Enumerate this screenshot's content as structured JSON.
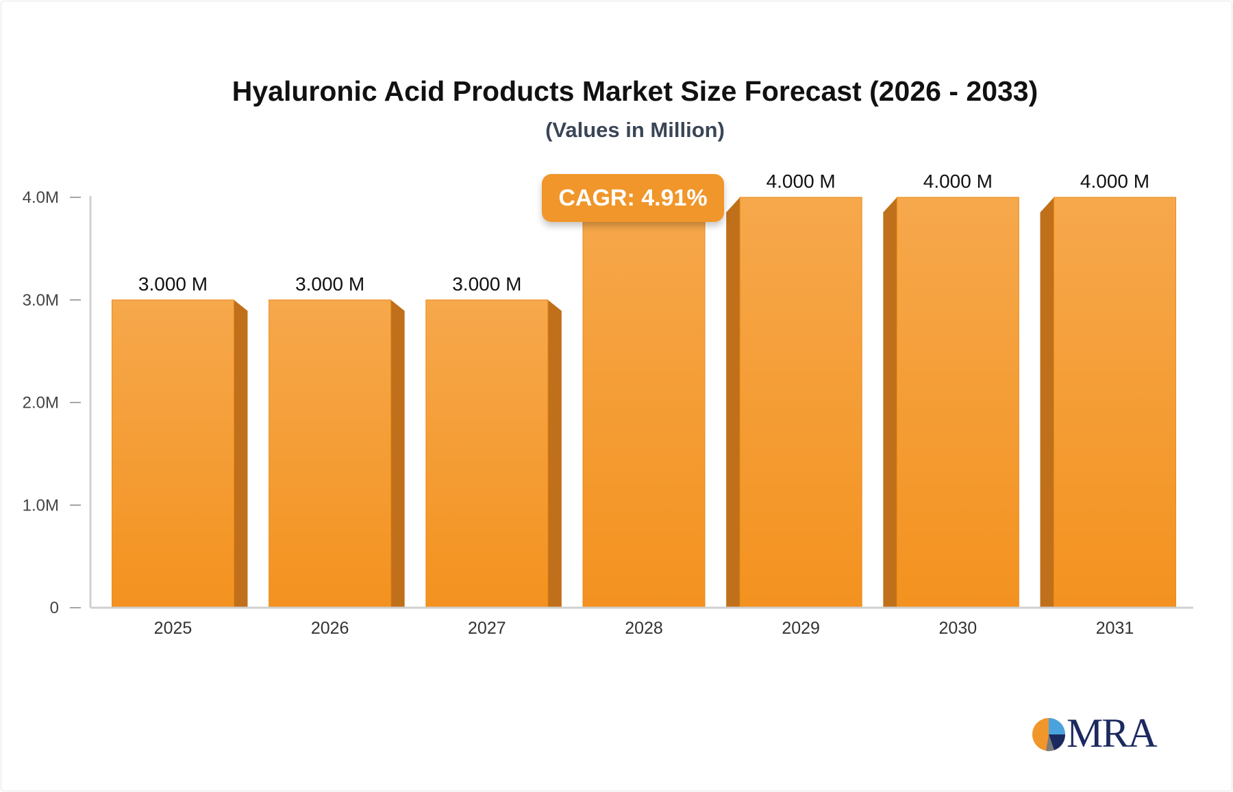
{
  "header": {
    "title": "Hyaluronic Acid Products Market Size Forecast (2026 - 2033)",
    "subtitle": "(Values in Million)"
  },
  "badge": {
    "cagr_label": "CAGR: 4.91%"
  },
  "logo": {
    "text": "MRA"
  },
  "colors": {
    "bar_front": "#f5a03c",
    "bar_side": "#c0701a",
    "badge": "#f0962a",
    "axis": "#d0d0d0",
    "logo_text": "#1b2a5e"
  },
  "chart_data": {
    "type": "bar",
    "title": "Hyaluronic Acid Products Market Size Forecast (2026 - 2033)",
    "subtitle": "(Values in Million)",
    "categories": [
      "2025",
      "2026",
      "2027",
      "2028",
      "2029",
      "2030",
      "2031"
    ],
    "values": [
      3.0,
      3.0,
      3.0,
      4.0,
      4.0,
      4.0,
      4.0
    ],
    "value_labels": [
      "3.000 M",
      "3.000 M",
      "3.000 M",
      "",
      "4.000 M",
      "4.000 M",
      "4.000 M"
    ],
    "yticks": [
      0,
      1,
      2,
      3,
      4
    ],
    "ytick_labels": [
      "0",
      "1.0M",
      "2.0M",
      "3.0M",
      "4.0M"
    ],
    "ylim": [
      0,
      4
    ],
    "xlabel": "",
    "ylabel": "",
    "grid": false,
    "legend": "none"
  }
}
